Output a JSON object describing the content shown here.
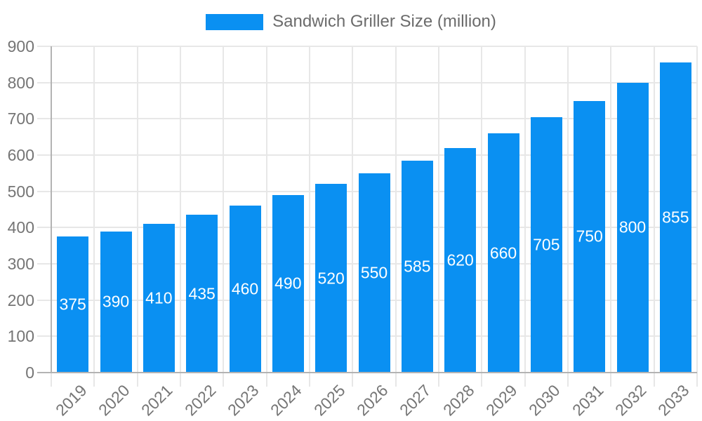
{
  "chart_data": {
    "type": "bar",
    "title": "",
    "legend": "Sandwich Griller Size (million)",
    "series": [
      {
        "name": "Sandwich Griller Size (million)",
        "values": [
          375,
          390,
          410,
          435,
          460,
          490,
          520,
          550,
          585,
          620,
          660,
          705,
          750,
          800,
          855
        ]
      }
    ],
    "categories": [
      "2019",
      "2020",
      "2021",
      "2022",
      "2023",
      "2024",
      "2025",
      "2026",
      "2027",
      "2028",
      "2029",
      "2030",
      "2031",
      "2032",
      "2033"
    ],
    "xlabel": "",
    "ylabel": "",
    "ylim": [
      0,
      900
    ],
    "ytick_step": 100,
    "ytick_labels": [
      "0",
      "100",
      "200",
      "300",
      "400",
      "500",
      "600",
      "700",
      "800",
      "900"
    ],
    "grid": true,
    "legend_position": "top-center",
    "bar_value_labels_visible": true,
    "x_label_rotation_deg": -45,
    "colors": {
      "bar": "#0a90f2",
      "bar_value_text": "#ffffff",
      "axis_text": "#757575",
      "legend_text": "#6b6b6b",
      "gridline": "#e7e7e7",
      "axis_line": "#b3b3b3",
      "background": "#ffffff"
    }
  }
}
